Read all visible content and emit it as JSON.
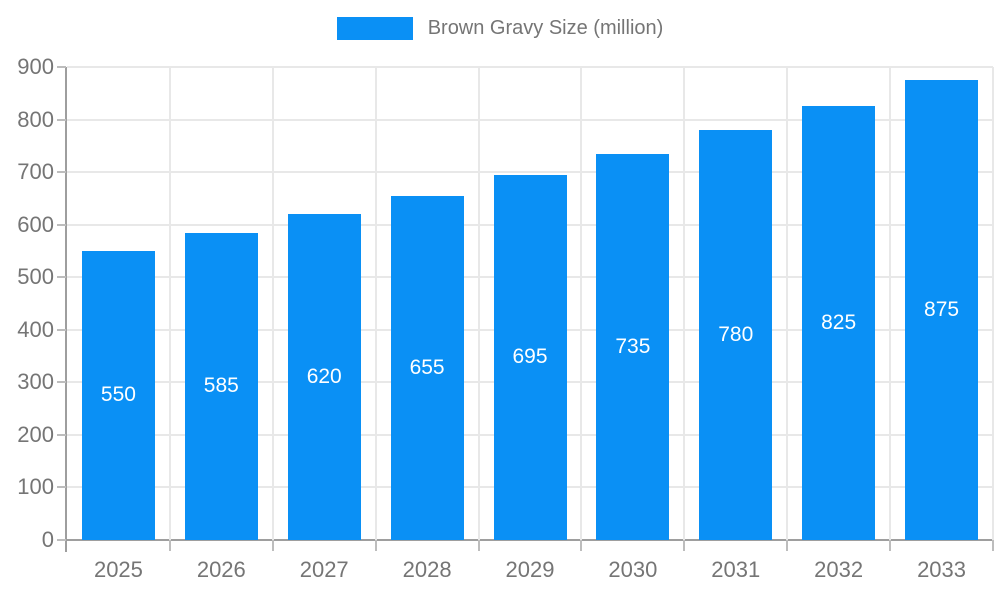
{
  "chart_data": {
    "type": "bar",
    "title": "",
    "categories": [
      "2025",
      "2026",
      "2027",
      "2028",
      "2029",
      "2030",
      "2031",
      "2032",
      "2033"
    ],
    "series": [
      {
        "name": "Brown Gravy Size (million)",
        "values": [
          550,
          585,
          620,
          655,
          695,
          735,
          780,
          825,
          875
        ]
      }
    ],
    "value_labels": [
      "550",
      "585",
      "620",
      "655",
      "695",
      "735",
      "780",
      "825",
      "875"
    ],
    "xlabel": "",
    "ylabel": "",
    "ylim": [
      0,
      900
    ],
    "y_tick_labels": [
      "0",
      "100",
      "200",
      "300",
      "400",
      "500",
      "600",
      "700",
      "800",
      "900"
    ],
    "grid": true,
    "legend_position": "top-center",
    "bar_color": "#0a90f5",
    "value_label_color": "#ffffff"
  },
  "styles": {
    "axis_color": "#9e9e9e",
    "grid_color": "#e8e8e8",
    "tick_color": "#bdbdbd",
    "tick_label_color": "#757575",
    "background": "#ffffff"
  }
}
